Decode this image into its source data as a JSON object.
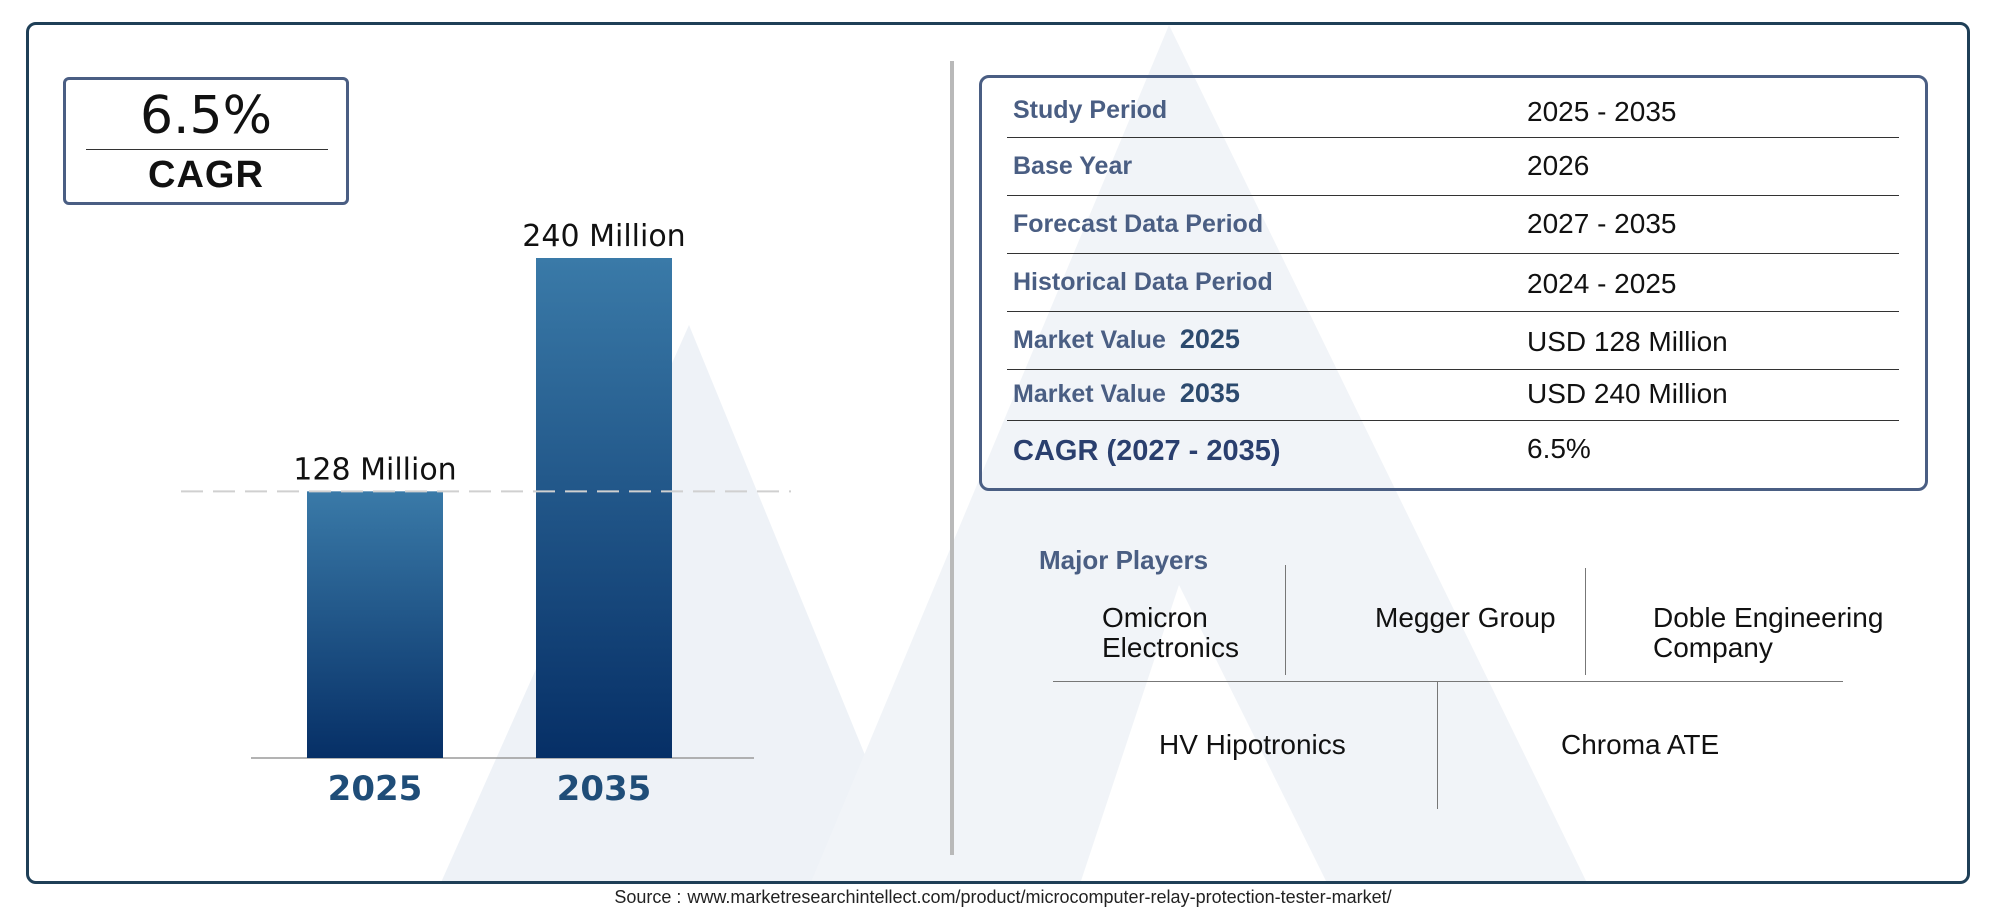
{
  "summary": {
    "cagr_value": "6.5%",
    "cagr_label": "CAGR"
  },
  "chart_data": {
    "type": "bar",
    "categories": [
      "2025",
      "2035"
    ],
    "values": [
      128,
      240
    ],
    "data_labels": [
      "128 Million",
      "240 Million"
    ],
    "title": "",
    "xlabel": "",
    "ylabel": "",
    "ylim": [
      0,
      240
    ],
    "grid": false,
    "legend": "none",
    "colors": {
      "bar_top": "#3a7aa8",
      "bar_bottom": "#062f66",
      "category_label": "#1f4d78",
      "reference_line": "#d0d0d0"
    }
  },
  "info_table": {
    "rows": [
      {
        "label": "Study Period",
        "year": "",
        "value": "2025 - 2035"
      },
      {
        "label": "Base Year",
        "year": "",
        "value": "2026"
      },
      {
        "label": "Forecast Data Period",
        "year": "",
        "value": "2027 - 2035"
      },
      {
        "label": "Historical Data Period",
        "year": "",
        "value": "2024 - 2025"
      },
      {
        "label": "Market Value",
        "year": "2025",
        "value": "USD 128 Million"
      },
      {
        "label": "Market Value",
        "year": "2035",
        "value": "USD 240 Million"
      },
      {
        "label": "CAGR (2027 - 2035)",
        "year": "",
        "value": "6.5%"
      }
    ]
  },
  "players": {
    "title": "Major Players",
    "row1": [
      {
        "line1": "Omicron",
        "line2": "Electronics"
      },
      {
        "line1": "Megger Group",
        "line2": ""
      },
      {
        "line1": "Doble Engineering",
        "line2": "Company"
      }
    ],
    "row2": [
      {
        "line1": "HV Hipotronics"
      },
      {
        "line1": "Chroma ATE"
      }
    ]
  },
  "footer": {
    "source_label": "Source :",
    "source_url": "www.marketresearchintellect.com/product/microcomputer-relay-protection-tester-market/"
  },
  "theme": {
    "frame": "#1f3f57",
    "accent": "#4a5e83",
    "watermark": "#eef2f7"
  }
}
